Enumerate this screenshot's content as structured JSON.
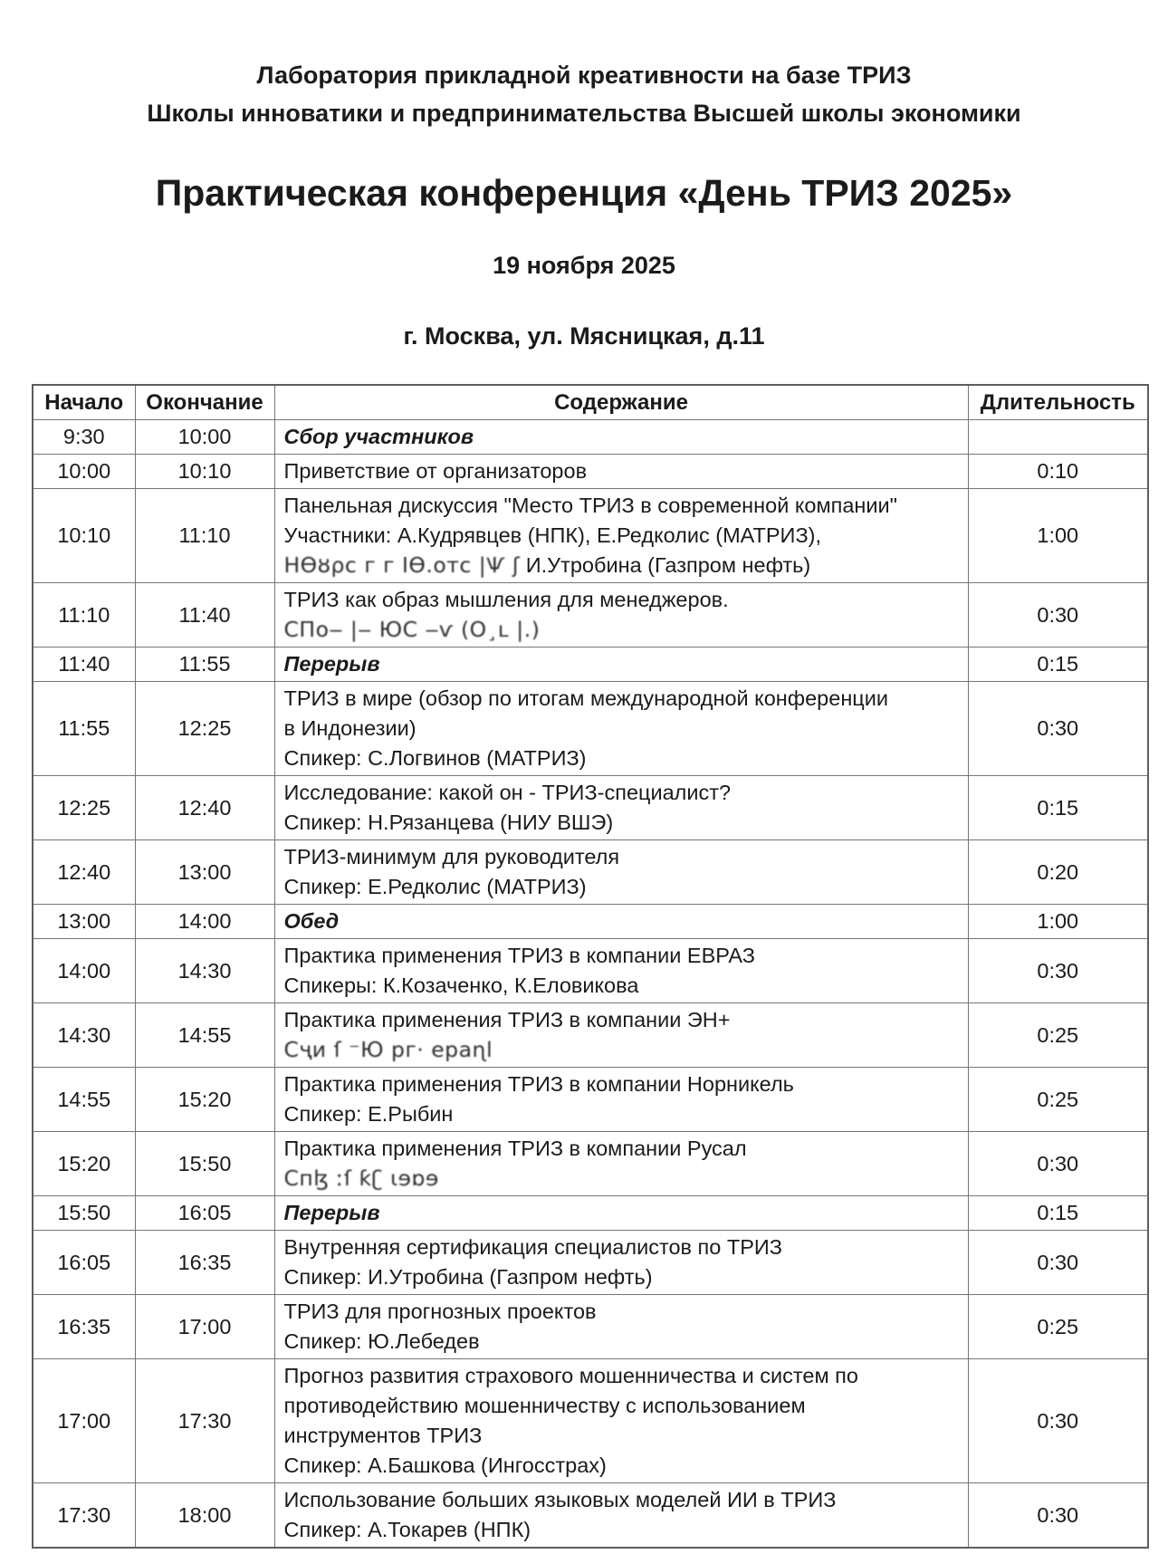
{
  "header": {
    "org_line1": "Лаборатория прикладной креативности на базе ТРИЗ",
    "org_line2": "Школы инноватики и предпринимательства Высшей школы экономики",
    "title": "Практическая конференция «День ТРИЗ 2025»",
    "date": "19 ноября 2025",
    "address": "г. Москва, ул. Мясницкая, д.11"
  },
  "schedule": {
    "columns": [
      "Начало",
      "Окончание",
      "Содержание",
      "Длительность"
    ],
    "rows": [
      {
        "start": "9:30",
        "end": "10:00",
        "duration": "",
        "lines": [
          [
            {
              "text": "Сбор участников",
              "style": "event"
            }
          ]
        ]
      },
      {
        "start": "10:00",
        "end": "10:10",
        "duration": "0:10",
        "lines": [
          [
            {
              "text": "Приветствие от организаторов",
              "style": "normal"
            }
          ]
        ]
      },
      {
        "start": "10:10",
        "end": "11:10",
        "duration": "1:00",
        "lines": [
          [
            {
              "text": "Панельная дискуссия \"Место ТРИЗ в современной компании\"",
              "style": "normal"
            }
          ],
          [
            {
              "text": "Участники: А.Кудрявцев (НПК), Е.Редколис (МАТРИЗ),",
              "style": "normal"
            }
          ],
          [
            {
              "text": "НѲȣρс  г г ІѲ.отс |Ѱ ʃ",
              "style": "garbled"
            },
            {
              "text": " И.Утробина (Газпром нефть)",
              "style": "normal"
            }
          ]
        ]
      },
      {
        "start": "11:10",
        "end": "11:40",
        "duration": "0:30",
        "lines": [
          [
            {
              "text": "ТРИЗ как образ мышления для менеджеров.",
              "style": "normal"
            }
          ],
          [
            {
              "text": "СПо‒ |‒ ЮС ‒ѵ   (О¸ʟ   |.)",
              "style": "garbled"
            }
          ]
        ]
      },
      {
        "start": "11:40",
        "end": "11:55",
        "duration": "0:15",
        "lines": [
          [
            {
              "text": "Перерыв",
              "style": "event"
            }
          ]
        ]
      },
      {
        "start": "11:55",
        "end": "12:25",
        "duration": "0:30",
        "lines": [
          [
            {
              "text": "ТРИЗ в мире (обзор по итогам международной конференции",
              "style": "normal"
            }
          ],
          [
            {
              "text": "в Индонезии)",
              "style": "normal"
            }
          ],
          [
            {
              "text": "Спикер: С.Логвинов (МАТРИЗ)",
              "style": "normal"
            }
          ]
        ]
      },
      {
        "start": "12:25",
        "end": "12:40",
        "duration": "0:15",
        "lines": [
          [
            {
              "text": "Исследование: какой он - ТРИЗ-специалист?",
              "style": "normal"
            }
          ],
          [
            {
              "text": "Спикер: Н.Рязанцева (НИУ ВШЭ)",
              "style": "normal"
            }
          ]
        ]
      },
      {
        "start": "12:40",
        "end": "13:00",
        "duration": "0:20",
        "lines": [
          [
            {
              "text": "ТРИЗ-минимум для руководителя",
              "style": "normal"
            }
          ],
          [
            {
              "text": "Спикер: Е.Редколис (МАТРИЗ)",
              "style": "normal"
            }
          ]
        ]
      },
      {
        "start": "13:00",
        "end": "14:00",
        "duration": "1:00",
        "lines": [
          [
            {
              "text": "Обед",
              "style": "event"
            }
          ]
        ]
      },
      {
        "start": "14:00",
        "end": "14:30",
        "duration": "0:30",
        "lines": [
          [
            {
              "text": "Практика применения ТРИЗ в компании ЕВРАЗ",
              "style": "normal"
            }
          ],
          [
            {
              "text": "Спикеры: К.Козаченко, К.Еловикова",
              "style": "normal"
            }
          ]
        ]
      },
      {
        "start": "14:30",
        "end": "14:55",
        "duration": "0:25",
        "lines": [
          [
            {
              "text": "Практика применения ТРИЗ в компании ЭН+",
              "style": "normal"
            }
          ],
          [
            {
              "text": "Сҷи   ſ   ⁻Ю рг·   ераɳl",
              "style": "garbled"
            }
          ]
        ]
      },
      {
        "start": "14:55",
        "end": "15:20",
        "duration": "0:25",
        "lines": [
          [
            {
              "text": "Практика применения ТРИЗ в компании Норникель",
              "style": "normal"
            }
          ],
          [
            {
              "text": "Спикер: Е.Рыбин",
              "style": "normal"
            }
          ]
        ]
      },
      {
        "start": "15:20",
        "end": "15:50",
        "duration": "0:30",
        "lines": [
          [
            {
              "text": "Практика применения ТРИЗ в компании Русал",
              "style": "normal"
            }
          ],
          [
            {
              "text": "Спɮ ːſ   ƙʗ   ɩɘɒɘ",
              "style": "garbled"
            }
          ]
        ]
      },
      {
        "start": "15:50",
        "end": "16:05",
        "duration": "0:15",
        "lines": [
          [
            {
              "text": "Перерыв",
              "style": "event"
            }
          ]
        ]
      },
      {
        "start": "16:05",
        "end": "16:35",
        "duration": "0:30",
        "lines": [
          [
            {
              "text": "Внутренняя сертификация специалистов по ТРИЗ",
              "style": "normal"
            }
          ],
          [
            {
              "text": "Спикер: И.Утробина (Газпром нефть)",
              "style": "normal"
            }
          ]
        ]
      },
      {
        "start": "16:35",
        "end": "17:00",
        "duration": "0:25",
        "lines": [
          [
            {
              "text": "ТРИЗ для прогнозных проектов",
              "style": "normal"
            }
          ],
          [
            {
              "text": "Спикер: Ю.Лебедев",
              "style": "normal"
            }
          ]
        ]
      },
      {
        "start": "17:00",
        "end": "17:30",
        "duration": "0:30",
        "lines": [
          [
            {
              "text": "Прогноз развития страхового мошенничества и систем по",
              "style": "normal"
            }
          ],
          [
            {
              "text": "противодействию мошенничеству с использованием",
              "style": "normal"
            }
          ],
          [
            {
              "text": "инструментов ТРИЗ",
              "style": "normal"
            }
          ],
          [
            {
              "text": "Спикер: А.Башкова (Ингосстрах)",
              "style": "normal"
            }
          ]
        ]
      },
      {
        "start": "17:30",
        "end": "18:00",
        "duration": "0:30",
        "lines": [
          [
            {
              "text": "Использование больших языковых моделей ИИ в ТРИЗ",
              "style": "normal"
            }
          ],
          [
            {
              "text": "Спикер: А.Токарев (НПК)",
              "style": "normal"
            }
          ]
        ]
      }
    ]
  }
}
